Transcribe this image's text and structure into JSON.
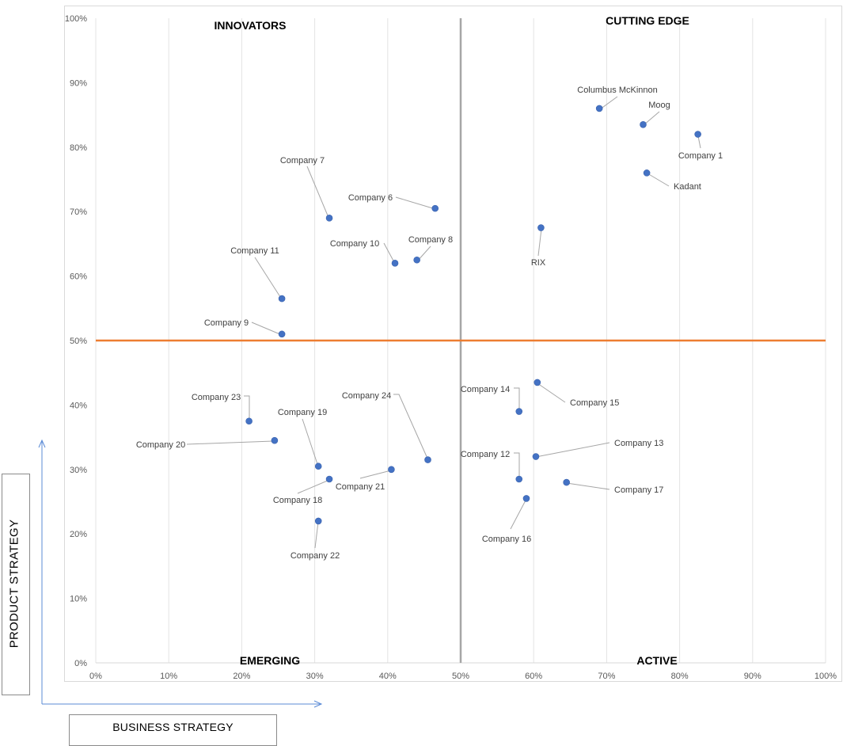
{
  "chart_data": {
    "type": "scatter",
    "xlabel": "BUSINESS STRATEGY",
    "ylabel": "PRODUCT STRATEGY",
    "xlim": [
      0,
      100
    ],
    "ylim": [
      0,
      100
    ],
    "x_ticks": [
      "0%",
      "10%",
      "20%",
      "30%",
      "40%",
      "50%",
      "60%",
      "70%",
      "80%",
      "90%",
      "100%"
    ],
    "y_ticks": [
      "0%",
      "10%",
      "20%",
      "30%",
      "40%",
      "50%",
      "60%",
      "70%",
      "80%",
      "90%",
      "100%"
    ],
    "grid": "vertical",
    "reference_lines": {
      "vertical_x": 50,
      "horizontal_y": 50,
      "horizontal_color": "#ED7D31",
      "vertical_color": "#A6A6A6"
    },
    "quadrants": {
      "top_left": "INNOVATORS",
      "top_right": "CUTTING EDGE",
      "bottom_left": "EMERGING",
      "bottom_right": "ACTIVE"
    },
    "marker_color": "#4472C4",
    "points": [
      {
        "name": "Columbus McKinnon",
        "x": 69,
        "y": 86
      },
      {
        "name": "Moog",
        "x": 75,
        "y": 83.5
      },
      {
        "name": "Company 1",
        "x": 82.5,
        "y": 82
      },
      {
        "name": "Kadant",
        "x": 75.5,
        "y": 76
      },
      {
        "name": "RIX",
        "x": 61,
        "y": 67.5
      },
      {
        "name": "Company 7",
        "x": 32,
        "y": 69
      },
      {
        "name": "Company 6",
        "x": 46.5,
        "y": 70.5
      },
      {
        "name": "Company 10",
        "x": 41,
        "y": 62
      },
      {
        "name": "Company 8",
        "x": 44,
        "y": 62.5
      },
      {
        "name": "Company 11",
        "x": 25.5,
        "y": 56.5
      },
      {
        "name": "Company 9",
        "x": 25.5,
        "y": 51
      },
      {
        "name": "Company 23",
        "x": 21,
        "y": 37.5
      },
      {
        "name": "Company 20",
        "x": 24.5,
        "y": 34.5
      },
      {
        "name": "Company 19",
        "x": 30.5,
        "y": 30.5
      },
      {
        "name": "Company 18",
        "x": 32,
        "y": 28.5
      },
      {
        "name": "Company 21",
        "x": 40.5,
        "y": 30
      },
      {
        "name": "Company 24",
        "x": 45.5,
        "y": 31.5
      },
      {
        "name": "Company 22",
        "x": 30.5,
        "y": 22
      },
      {
        "name": "Company 14",
        "x": 58,
        "y": 39
      },
      {
        "name": "Company 15",
        "x": 60.5,
        "y": 43.5
      },
      {
        "name": "Company 12",
        "x": 58,
        "y": 28.5
      },
      {
        "name": "Company 13",
        "x": 60.3,
        "y": 32
      },
      {
        "name": "Company 17",
        "x": 64.5,
        "y": 28
      },
      {
        "name": "Company 16",
        "x": 59,
        "y": 25.5
      }
    ]
  }
}
